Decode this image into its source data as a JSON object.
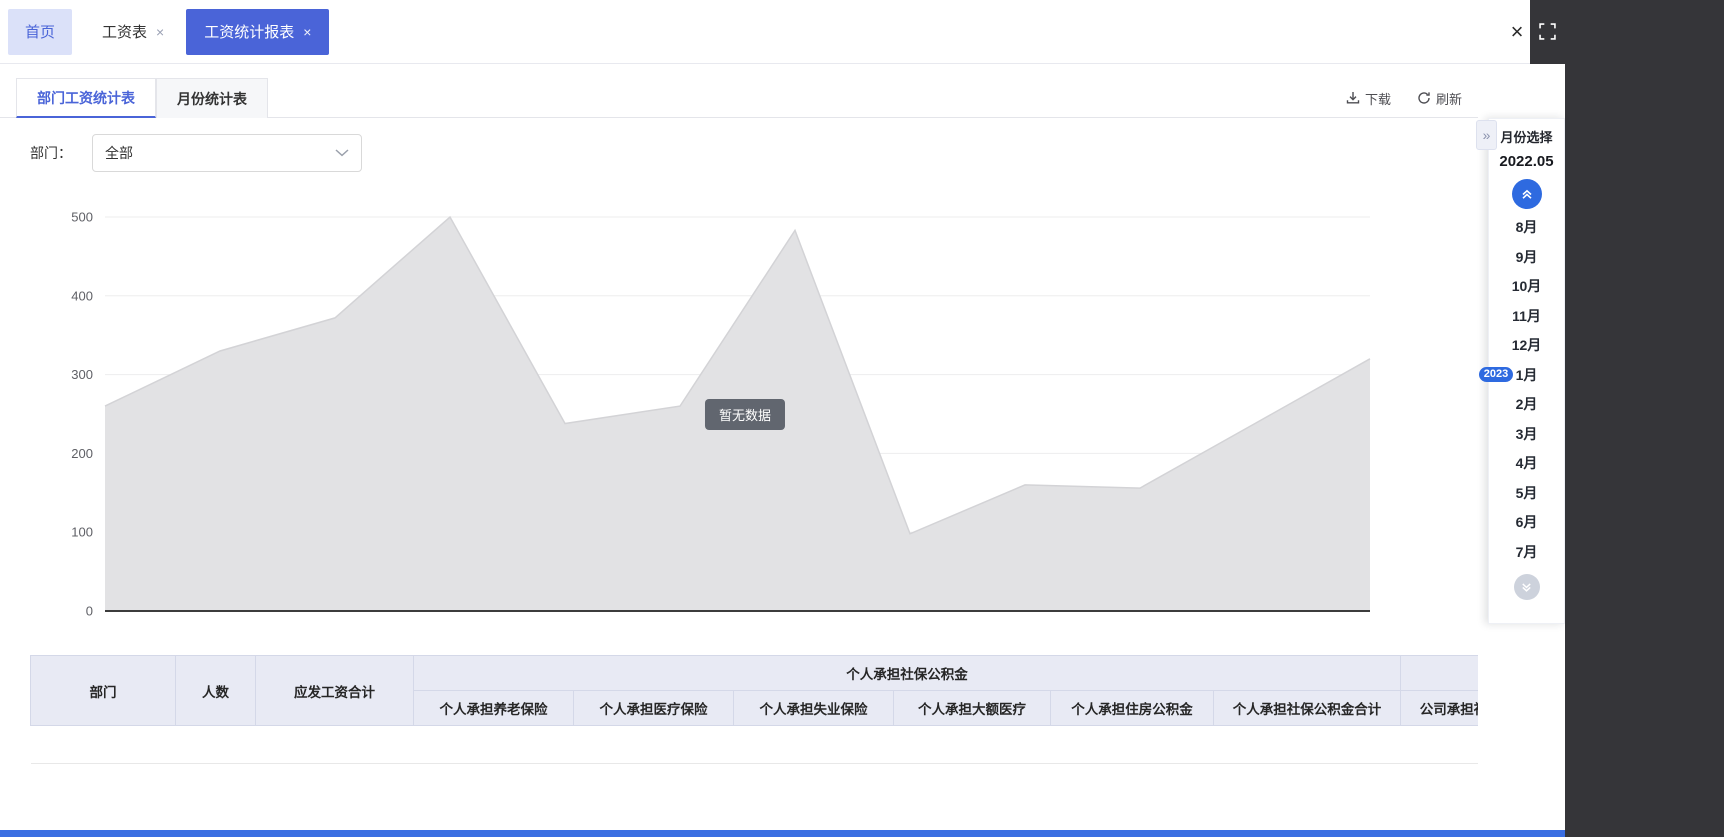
{
  "icons": {
    "close": "×",
    "collapse_right": "»"
  },
  "colors": {
    "accent_blue": "#4a64d8",
    "panel_blue": "#2e6ae0",
    "table_header_bg": "#e8eaf4",
    "chart_fill": "#e2e2e4",
    "bottom_bar_blue": "#3a6ee2",
    "dark_background": "#353539"
  },
  "top_tabs": [
    {
      "label": "首页",
      "active": false,
      "closable": false
    },
    {
      "label": "工资表",
      "active": false,
      "closable": true
    },
    {
      "label": "工资统计报表",
      "active": true,
      "closable": true
    }
  ],
  "sub_tabs": [
    {
      "label": "部门工资统计表",
      "active": true
    },
    {
      "label": "月份统计表",
      "active": false
    }
  ],
  "toolbar": {
    "download_label": "下载",
    "refresh_label": "刷新"
  },
  "filter": {
    "label": "部门：",
    "selected_value": "全部"
  },
  "chart_data": {
    "type": "area",
    "x_index": [
      0,
      1,
      2,
      3,
      4,
      5,
      6,
      7,
      8,
      9,
      10,
      11
    ],
    "values": [
      260,
      330,
      372,
      500,
      238,
      260,
      483,
      98,
      160,
      156,
      238,
      320
    ],
    "x_tick_labels": [],
    "ylim": [
      0,
      500
    ],
    "yticks": [
      0,
      100,
      200,
      300,
      400,
      500
    ],
    "grid": true,
    "legend": false,
    "title": "",
    "xlabel": "",
    "ylabel": "",
    "fill_color": "#e2e2e4",
    "line_color": "#d3d3d6",
    "axis_color": "#3c3c3c",
    "empty_text": "暂无数据"
  },
  "month_panel": {
    "title": "月份选择",
    "current_month": "2022.05",
    "year_badge": "2023",
    "months": [
      "8月",
      "9月",
      "10月",
      "11月",
      "12月",
      "1月",
      "2月",
      "3月",
      "4月",
      "5月",
      "6月",
      "7月"
    ]
  },
  "table": {
    "left_columns": [
      "部门",
      "人数",
      "应发工资合计"
    ],
    "group1": {
      "label": "个人承担社保公积金",
      "columns": [
        "个人承担养老保险",
        "个人承担医疗保险",
        "个人承担失业保险",
        "个人承担大额医疗",
        "个人承担住房公积金",
        "个人承担社保公积金合计"
      ]
    },
    "group2": {
      "label": "",
      "columns": [
        "公司承担社保公积金"
      ]
    }
  }
}
